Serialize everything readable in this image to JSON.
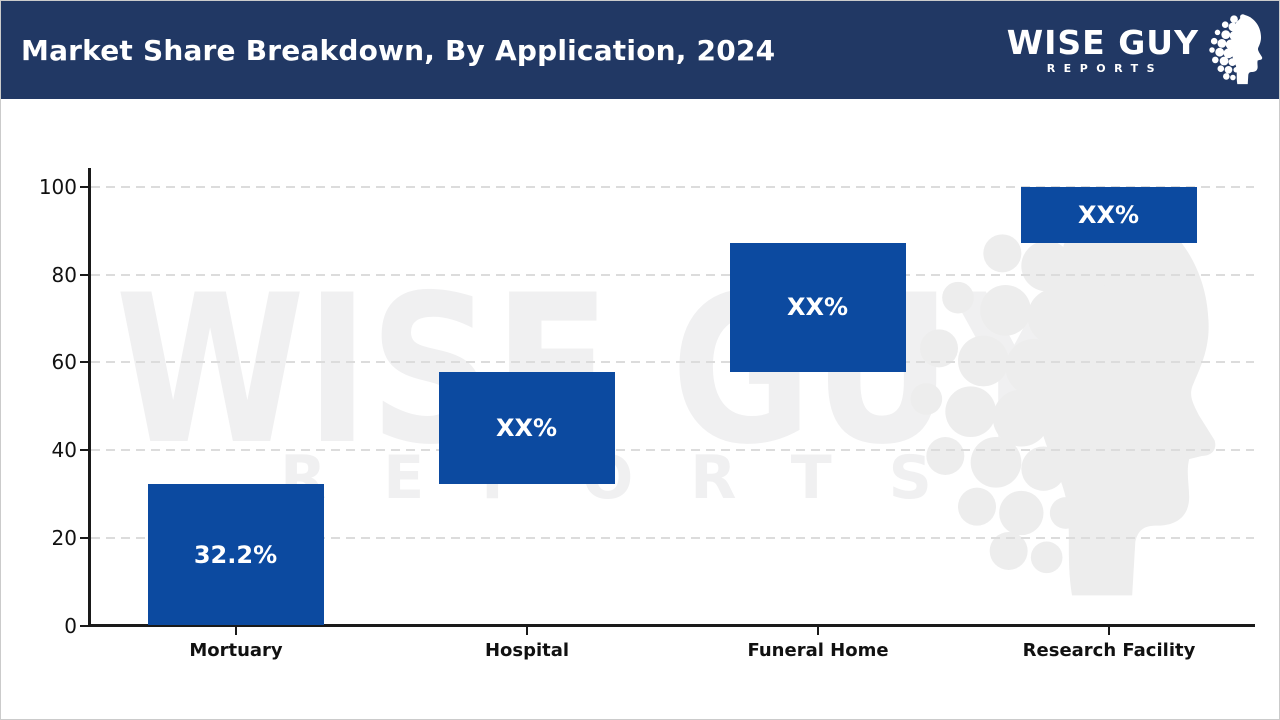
{
  "header": {
    "title": "Market Share Breakdown, By Application, 2024",
    "logo_line1": "WISE GUY",
    "logo_line2": "REPORTS"
  },
  "watermark": {
    "line1": "WISE GUY",
    "line2": "REPORTS"
  },
  "chart_data": {
    "type": "bar",
    "subtype": "waterfall-floating-bars",
    "title": "Market Share Breakdown, By Application, 2024",
    "categories": [
      "Mortuary",
      "Hospital",
      "Funeral Home",
      "Research Facility"
    ],
    "segments": [
      {
        "category": "Mortuary",
        "start": 0,
        "end": 32.2,
        "label": "32.2%"
      },
      {
        "category": "Hospital",
        "start": 32.2,
        "end": 57.8,
        "label": "XX%"
      },
      {
        "category": "Funeral Home",
        "start": 57.8,
        "end": 87.3,
        "label": "XX%"
      },
      {
        "category": "Research Facility",
        "start": 87.3,
        "end": 100,
        "label": "XX%"
      }
    ],
    "yticks": [
      0,
      20,
      40,
      60,
      80,
      100
    ],
    "ylim": [
      0,
      106
    ],
    "xlabel": "",
    "ylabel": "",
    "grid": "horizontal-dashed",
    "legend": "none"
  },
  "colors": {
    "header_bg": "#213864",
    "title_color": "#ffffff",
    "bar_color": "#0c4aa0",
    "bar_label_color": "#ffffff",
    "axis_color": "#1a1a1a",
    "grid_color": "#dcdcdc",
    "tick_label_color": "#111111",
    "watermark_color": "#f0f0f1",
    "watermark_head_color": "#ededed",
    "page_bg": "#ffffff",
    "page_border": "#cbcbcb"
  }
}
